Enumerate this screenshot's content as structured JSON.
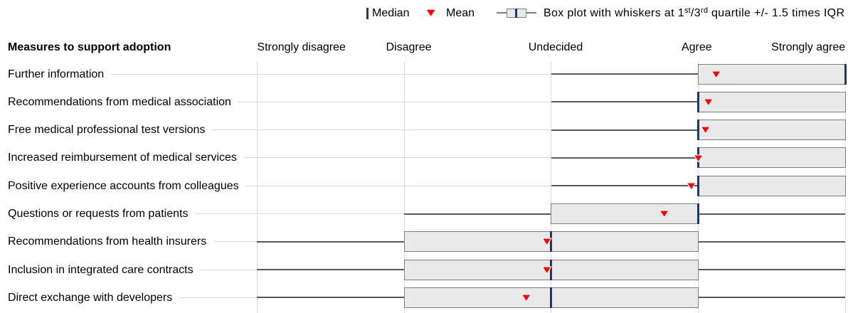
{
  "chart_data": {
    "type": "boxplot",
    "orientation": "horizontal",
    "title": "Measures to support adoption",
    "axis": {
      "min": 1,
      "max": 5,
      "tick_values": [
        1,
        2,
        3,
        4,
        5
      ],
      "tick_labels": [
        "Strongly disagree",
        "Disagree",
        "Undecided",
        "Agree",
        "Strongly agree"
      ],
      "grid": true
    },
    "legend": {
      "median_label": "Median",
      "mean_label": "Mean",
      "boxplot_label_segments": [
        {
          "t": "Box plot with whiskers at 1"
        },
        {
          "t": "st",
          "sup": true
        },
        {
          "t": "/3"
        },
        {
          "t": "rd",
          "sup": true
        },
        {
          "t": " quartile +/- 1.5 times IQR"
        }
      ],
      "position": "top"
    },
    "rows": [
      {
        "label": "Further information",
        "whisker_low": 3,
        "q1": 4,
        "median": 5,
        "q3": 5,
        "whisker_high": 5,
        "mean": 4.12
      },
      {
        "label": "Recommendations from medical association",
        "whisker_low": 3,
        "q1": 4,
        "median": 4,
        "q3": 5,
        "whisker_high": 5,
        "mean": 4.07
      },
      {
        "label": "Free medical professional test versions",
        "whisker_low": 3,
        "q1": 4,
        "median": 4,
        "q3": 5,
        "whisker_high": 5,
        "mean": 4.05
      },
      {
        "label": "Increased reimbursement of medical services",
        "whisker_low": 3,
        "q1": 4,
        "median": 4,
        "q3": 5,
        "whisker_high": 5,
        "mean": 4.0
      },
      {
        "label": "Positive experience accounts from colleagues",
        "whisker_low": 3,
        "q1": 4,
        "median": 4,
        "q3": 5,
        "whisker_high": 5,
        "mean": 3.95
      },
      {
        "label": "Questions or requests from patients",
        "whisker_low": 2,
        "q1": 3,
        "median": 4,
        "q3": 4,
        "whisker_high": 5,
        "mean": 3.77
      },
      {
        "label": "Recommendations from health insurers",
        "whisker_low": 1,
        "q1": 2,
        "median": 3,
        "q3": 4,
        "whisker_high": 5,
        "mean": 2.97
      },
      {
        "label": "Inclusion in integrated care contracts",
        "whisker_low": 1,
        "q1": 2,
        "median": 3,
        "q3": 4,
        "whisker_high": 5,
        "mean": 2.97
      },
      {
        "label": "Direct exchange with developers",
        "whisker_low": 1,
        "q1": 2,
        "median": 3,
        "q3": 4,
        "whisker_high": 5,
        "mean": 2.83
      }
    ],
    "colors": {
      "median": "#1f3864",
      "mean": "#ff0000",
      "mean_outline": "#ffffff",
      "box_fill": "#e9e9e9",
      "box_border": "#7f7f7f",
      "whisker": "#595959",
      "grid": "#dadada",
      "leader": "#d9d9d9",
      "text": "#000000",
      "background": "#ffffff"
    }
  }
}
